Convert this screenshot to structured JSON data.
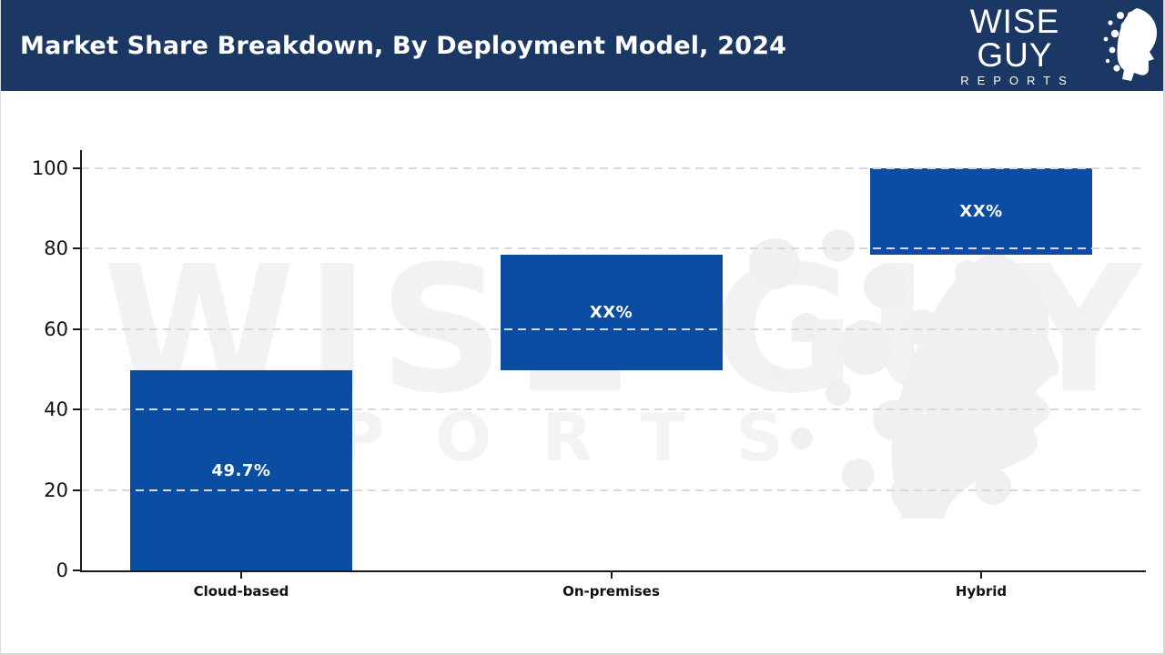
{
  "header": {
    "title": "Market Share Breakdown, By Deployment Model, 2024",
    "logo": {
      "wordmark": "WISE GUY",
      "subtitle": "REPORTS"
    }
  },
  "watermark": {
    "line1": "WISE GUY",
    "line2": "REPORTS"
  },
  "colors": {
    "header_bg": "#1b3764",
    "bar_fill": "#0b4da2",
    "bar_label_text": "#ffffff",
    "gridline": "#d9d9d9",
    "axis": "#1a1a1a",
    "watermark": "#f2f2f4"
  },
  "chart_data": {
    "type": "bar",
    "subtype": "floating-segments-waterfall",
    "title": "Market Share Breakdown, By Deployment Model, 2024",
    "categories": [
      "Cloud-based",
      "On-premises",
      "Hybrid"
    ],
    "segments": [
      {
        "category": "Cloud-based",
        "start": 0,
        "end": 49.7,
        "value": 49.7,
        "label": "49.7%"
      },
      {
        "category": "On-premises",
        "start": 49.7,
        "end": 78.5,
        "value": 28.8,
        "label": "XX%"
      },
      {
        "category": "Hybrid",
        "start": 78.5,
        "end": 100,
        "value": 21.5,
        "label": "XX%"
      }
    ],
    "yticks": [
      0,
      20,
      40,
      60,
      80,
      100
    ],
    "ylim": [
      0,
      100
    ],
    "xlabel": "",
    "ylabel": "",
    "grid": "dashed-horizontal",
    "legend": "none"
  }
}
